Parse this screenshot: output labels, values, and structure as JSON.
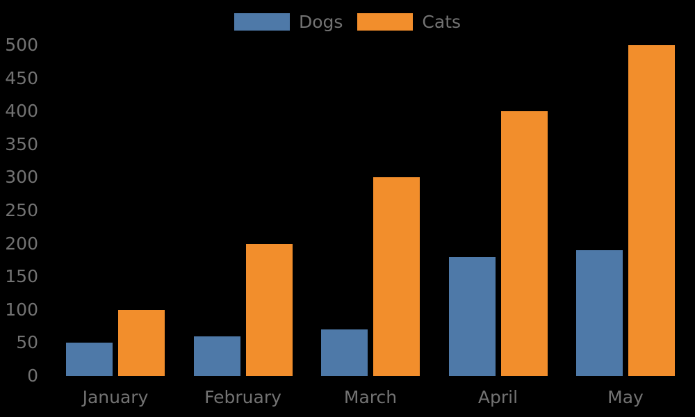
{
  "chart_data": {
    "type": "bar",
    "title": "",
    "categories": [
      "January",
      "February",
      "March",
      "April",
      "May"
    ],
    "series": [
      {
        "name": "Dogs",
        "color": "#4e79a8",
        "values": [
          50,
          60,
          70,
          180,
          190
        ]
      },
      {
        "name": "Cats",
        "color": "#f28e2c",
        "values": [
          100,
          200,
          300,
          400,
          500
        ]
      }
    ],
    "xlabel": "",
    "ylabel": "",
    "ylim": [
      0,
      500
    ],
    "ytick_step": 50,
    "yticks": [
      0,
      50,
      100,
      150,
      200,
      250,
      300,
      350,
      400,
      450,
      500
    ],
    "legend_position": "top-center",
    "grid": false,
    "colors": {
      "background": "#000000",
      "text": "#737373"
    }
  }
}
